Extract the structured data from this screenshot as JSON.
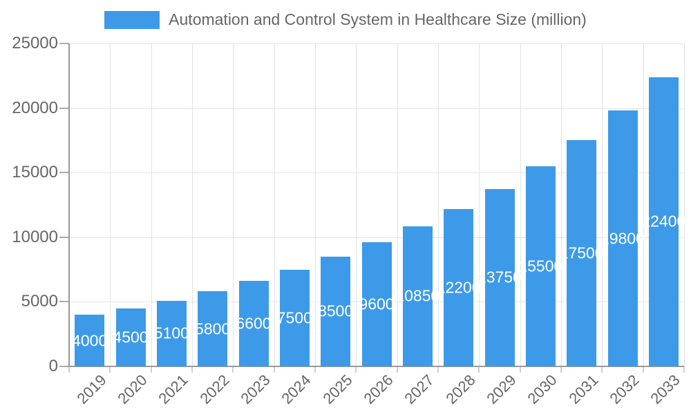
{
  "chart_data": {
    "type": "bar",
    "title": "",
    "legend": "Automation and Control System in Healthcare Size (million)",
    "legend_position": "top",
    "categories": [
      "2019",
      "2020",
      "2021",
      "2022",
      "2023",
      "2024",
      "2025",
      "2026",
      "2027",
      "2028",
      "2029",
      "2030",
      "2031",
      "2032",
      "2033"
    ],
    "values": [
      4000,
      4500,
      5100,
      5800,
      6600,
      7500,
      8500,
      9600,
      10850,
      12200,
      13750,
      15500,
      17500,
      19800,
      22400
    ],
    "xlabel": "",
    "ylabel": "",
    "ylim": [
      0,
      25000
    ],
    "yticks": [
      0,
      5000,
      10000,
      15000,
      20000,
      25000
    ],
    "grid": true,
    "colors": {
      "bar": "#3D9AE8",
      "grid_line": "#E3E3E3",
      "axis_line": "#999999",
      "tick_text": "#666666",
      "value_label": "#FFFFFF",
      "background": "#FFFFFF"
    }
  }
}
